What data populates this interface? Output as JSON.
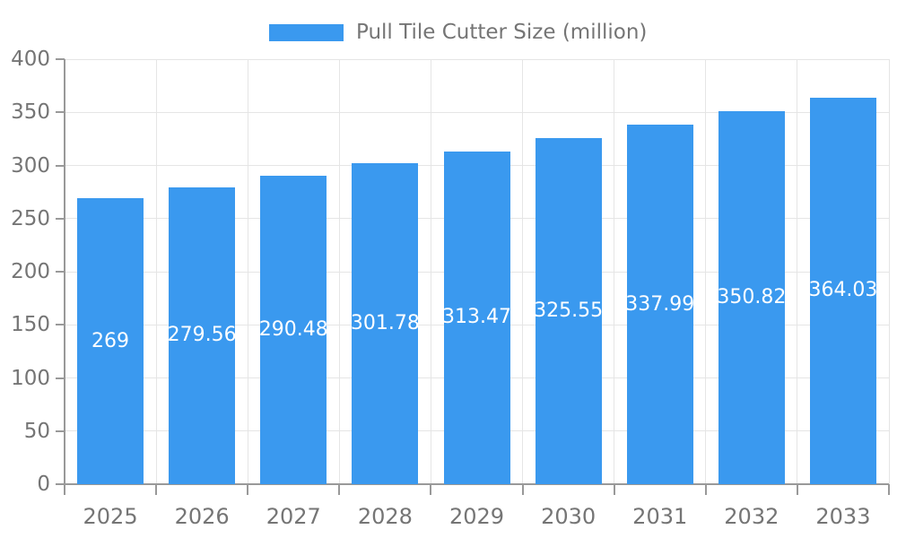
{
  "chart_data": {
    "type": "bar",
    "title": "Pull Tile Cutter Size (million)",
    "categories": [
      "2025",
      "2026",
      "2027",
      "2028",
      "2029",
      "2030",
      "2031",
      "2032",
      "2033"
    ],
    "values": [
      269,
      279.56,
      290.48,
      301.78,
      313.47,
      325.55,
      337.99,
      350.82,
      364.03
    ],
    "value_labels": [
      "269",
      "279.56",
      "290.48",
      "301.78",
      "313.47",
      "325.55",
      "337.99",
      "350.82",
      "364.03"
    ],
    "yticks": [
      "0",
      "50",
      "100",
      "150",
      "200",
      "250",
      "300",
      "350",
      "400"
    ],
    "ytick_step": 50,
    "ylim": [
      0,
      400
    ],
    "xlabel": "",
    "ylabel": "",
    "grid": true,
    "legend_position": "top",
    "bar_color": "#3A99EF",
    "bar_label_color": "#ffffff",
    "axis_color": "#999999",
    "grid_color": "#e5e5e5",
    "tick_text_color": "#757575"
  }
}
